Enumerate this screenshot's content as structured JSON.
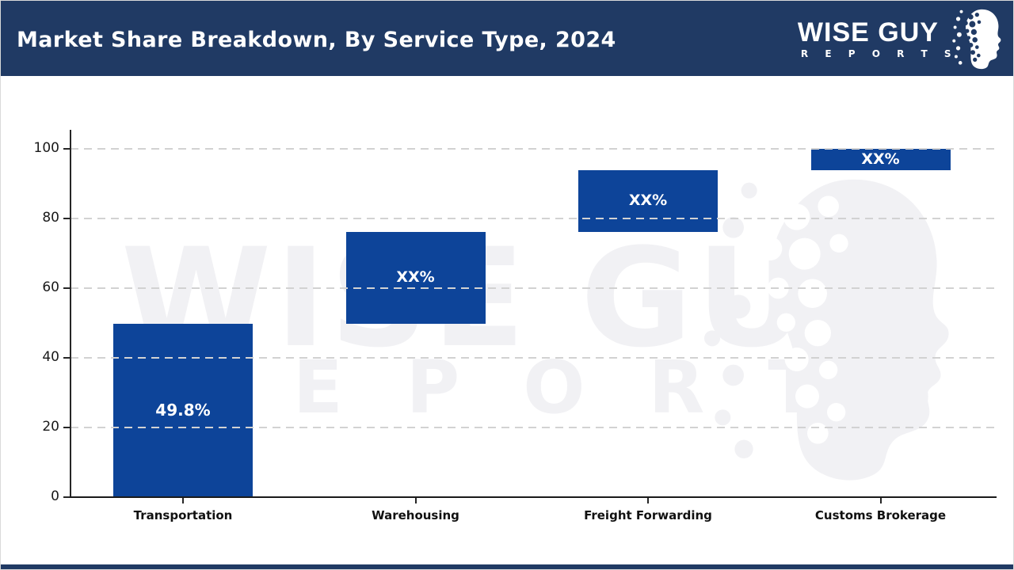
{
  "header": {
    "title": "Market Share Breakdown, By Service Type, 2024"
  },
  "logo": {
    "name": "WISE GUY",
    "subtitle": "R E P O R T S"
  },
  "watermark": {
    "line1": "WISE GUY",
    "line2": "R E P O R T S"
  },
  "colors": {
    "header_bg": "#203a64",
    "bar": "#0d4499",
    "grid": "#d2d2d2",
    "axis": "#262626",
    "bar_label": "#ffffff",
    "watermark": "#f1f1f4"
  },
  "chart_data": {
    "type": "bar",
    "subtype": "waterfall",
    "title": "Market Share Breakdown, By Service Type, 2024",
    "categories": [
      "Transportation",
      "Warehousing",
      "Freight Forwarding",
      "Customs Brokerage"
    ],
    "series": [
      {
        "name": "Transportation",
        "start": 0,
        "end": 49.8,
        "value": 49.8,
        "label": "49.8%"
      },
      {
        "name": "Warehousing",
        "start": 49.8,
        "end": 76.2,
        "value": 26.4,
        "label": "XX%"
      },
      {
        "name": "Freight Forwarding",
        "start": 76.2,
        "end": 93.8,
        "value": 17.6,
        "label": "XX%"
      },
      {
        "name": "Customs Brokerage",
        "start": 93.8,
        "end": 100,
        "value": 6.2,
        "label": "XX%"
      }
    ],
    "xlabel": "",
    "ylabel": "",
    "yticks": [
      0,
      20,
      40,
      60,
      80,
      100
    ],
    "ylim": [
      0,
      105
    ],
    "grid": "horizontal-dashed",
    "legend": "none",
    "bar_color": "#0d4499",
    "label_color": "#ffffff"
  }
}
